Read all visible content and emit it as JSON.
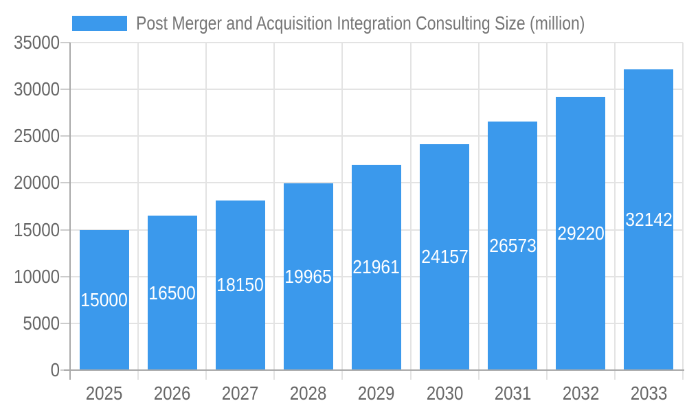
{
  "chart_data": {
    "type": "bar",
    "title": "Post Merger and Acquisition Integration Consulting Size (million)",
    "categories": [
      "2025",
      "2026",
      "2027",
      "2028",
      "2029",
      "2030",
      "2031",
      "2032",
      "2033"
    ],
    "values": [
      15000,
      16500,
      18150,
      19965,
      21961,
      24157,
      26573,
      29220,
      32142
    ],
    "xlabel": "",
    "ylabel": "",
    "ylim": [
      0,
      35000
    ],
    "yticks": [
      0,
      5000,
      10000,
      15000,
      20000,
      25000,
      30000,
      35000
    ],
    "grid": true,
    "legend_position": "top-left",
    "bar_labels": "inside-center, white",
    "colors": {
      "bar": "#3B99EC",
      "bar_label": "#FFFFFF",
      "axis_text": "#666666",
      "title_text": "#757575",
      "gridline": "#E3E3E3",
      "axis_line": "#A9A9A9",
      "tick": "#CCCCCC",
      "background": "#FFFFFF"
    }
  }
}
